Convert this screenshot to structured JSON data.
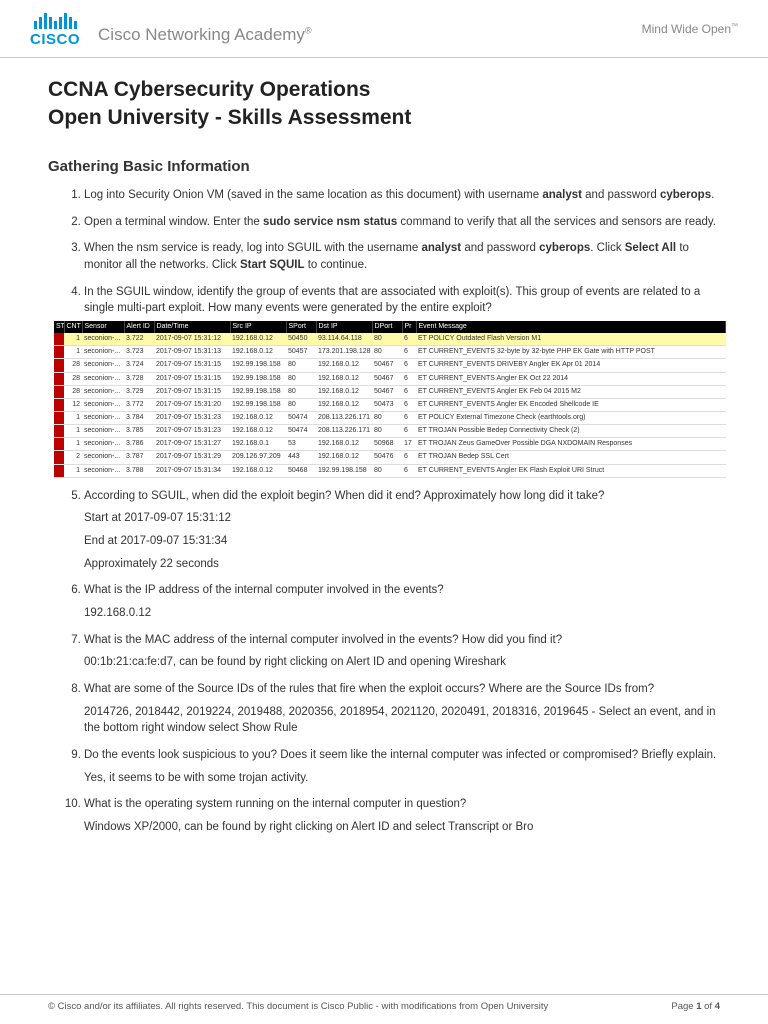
{
  "header": {
    "brand": "CISCO",
    "academy": "Cisco Networking Academy",
    "tagline": "Mind Wide Open",
    "bar_color": "#0096d6",
    "bars": [
      8,
      12,
      16,
      12,
      8,
      12,
      16,
      12,
      8
    ]
  },
  "titles": {
    "line1": "CCNA Cybersecurity Operations",
    "line2": "Open University - Skills Assessment"
  },
  "section_heading": "Gathering Basic Information",
  "items": {
    "1": "Log into Security Onion VM (saved in the same location as this document) with username <b>analyst</b> and password <b>cyberops</b>.",
    "2": "Open a terminal window. Enter the <b>sudo service nsm status</b> command to verify that all the services and sensors are ready.",
    "3": "When the nsm service is ready, log into SGUIL with the username <b>analyst</b> and password <b>cyberops</b>. Click <b>Select All</b> to monitor all the networks. Click <b>Start SQUIL</b> to continue.",
    "4": "In the SGUIL window, identify the group of events that are associated with exploit(s). This group of events are related to a single multi-part exploit. How many events were generated by the entire exploit?",
    "5": "According to SGUIL, when did the exploit begin? When did it end? Approximately how long did it take?",
    "5a": "Start at 2017-09-07 15:31:12",
    "5b": "End at 2017-09-07 15:31:34",
    "5c": "Approximately 22 seconds",
    "6": "What is the IP address of the internal computer involved in the events?",
    "6a": "192.168.0.12",
    "7": "What is the MAC address of the internal computer involved in the events? How did you find it?",
    "7a": "00:1b:21:ca:fe:d7, can be found by right clicking on Alert ID and opening Wireshark",
    "8": "What are some of the Source IDs of the rules that fire when the exploit occurs? Where are the Source IDs from?",
    "8a": "2014726, 2018442, 2019224, 2019488, 2020356, 2018954, 2021120, 2020491, 2018316, 2019645 - Select an event, and in the bottom right window select Show Rule",
    "9": "Do the events look suspicious to you? Does it seem like the internal computer was infected or compromised? Briefly explain.",
    "9a": "Yes, it seems to be with some trojan activity.",
    "10": "What is the operating system running on the internal computer in question?",
    "10a": "Windows XP/2000, can be found by right clicking on Alert ID and select Transcript or Bro"
  },
  "table": {
    "headers": [
      "ST",
      "CNT",
      "Sensor",
      "Alert ID",
      "Date/Time",
      "Src IP",
      "SPort",
      "Dst IP",
      "DPort",
      "Pr",
      "Event Message"
    ],
    "header_bg": "#000000",
    "header_fg": "#ffffff",
    "st_color": "#b00000",
    "highlight_bg": "#fffaaa",
    "rows": [
      {
        "sel": true,
        "cnt": "1",
        "sensor": "seconion-...",
        "aid": "3.722",
        "dt": "2017-09-07 15:31:12",
        "sip": "192.168.0.12",
        "sport": "50450",
        "dip": "93.114.64.118",
        "dport": "80",
        "pr": "6",
        "msg": "ET POLICY Outdated Flash Version M1"
      },
      {
        "sel": false,
        "cnt": "1",
        "sensor": "seconion-...",
        "aid": "3.723",
        "dt": "2017-09-07 15:31:13",
        "sip": "192.168.0.12",
        "sport": "50457",
        "dip": "173.201.198.128",
        "dport": "80",
        "pr": "6",
        "msg": "ET CURRENT_EVENTS 32-byte by 32-byte PHP EK Gate with HTTP POST"
      },
      {
        "sel": false,
        "cnt": "28",
        "sensor": "seconion-...",
        "aid": "3.724",
        "dt": "2017-09-07 15:31:15",
        "sip": "192.99.198.158",
        "sport": "80",
        "dip": "192.168.0.12",
        "dport": "50467",
        "pr": "6",
        "msg": "ET CURRENT_EVENTS DRIVEBY Angler EK Apr 01 2014"
      },
      {
        "sel": false,
        "cnt": "28",
        "sensor": "seconion-...",
        "aid": "3.728",
        "dt": "2017-09-07 15:31:15",
        "sip": "192.99.198.158",
        "sport": "80",
        "dip": "192.168.0.12",
        "dport": "50467",
        "pr": "6",
        "msg": "ET CURRENT_EVENTS Angler EK Oct 22 2014"
      },
      {
        "sel": false,
        "cnt": "28",
        "sensor": "seconion-...",
        "aid": "3.729",
        "dt": "2017-09-07 15:31:15",
        "sip": "192.99.198.158",
        "sport": "80",
        "dip": "192.168.0.12",
        "dport": "50467",
        "pr": "6",
        "msg": "ET CURRENT_EVENTS Angler EK Feb 04 2015 M2"
      },
      {
        "sel": false,
        "cnt": "12",
        "sensor": "seconion-...",
        "aid": "3.772",
        "dt": "2017-09-07 15:31:20",
        "sip": "192.99.198.158",
        "sport": "80",
        "dip": "192.168.0.12",
        "dport": "50473",
        "pr": "6",
        "msg": "ET CURRENT_EVENTS Angler EK Encoded Shellcode IE"
      },
      {
        "sel": false,
        "cnt": "1",
        "sensor": "seconion-...",
        "aid": "3.784",
        "dt": "2017-09-07 15:31:23",
        "sip": "192.168.0.12",
        "sport": "50474",
        "dip": "208.113.226.171",
        "dport": "80",
        "pr": "6",
        "msg": "ET POLICY External Timezone Check (earthtools.org)"
      },
      {
        "sel": false,
        "cnt": "1",
        "sensor": "seconion-...",
        "aid": "3.785",
        "dt": "2017-09-07 15:31:23",
        "sip": "192.168.0.12",
        "sport": "50474",
        "dip": "208.113.226.171",
        "dport": "80",
        "pr": "6",
        "msg": "ET TROJAN Possible Bedep Connectivity Check (2)"
      },
      {
        "sel": false,
        "cnt": "1",
        "sensor": "seconion-...",
        "aid": "3.786",
        "dt": "2017-09-07 15:31:27",
        "sip": "192.168.0.1",
        "sport": "53",
        "dip": "192.168.0.12",
        "dport": "50968",
        "pr": "17",
        "msg": "ET TROJAN Zeus GameOver Possible DGA NXDOMAIN Responses"
      },
      {
        "sel": false,
        "cnt": "2",
        "sensor": "seconion-...",
        "aid": "3.787",
        "dt": "2017-09-07 15:31:29",
        "sip": "209.126.97.209",
        "sport": "443",
        "dip": "192.168.0.12",
        "dport": "50476",
        "pr": "6",
        "msg": "ET TROJAN Bedep SSL Cert"
      },
      {
        "sel": false,
        "cnt": "1",
        "sensor": "seconion-...",
        "aid": "3.788",
        "dt": "2017-09-07 15:31:34",
        "sip": "192.168.0.12",
        "sport": "50468",
        "dip": "192.99.198.158",
        "dport": "80",
        "pr": "6",
        "msg": "ET CURRENT_EVENTS Angler EK Flash Exploit URI Struct"
      }
    ]
  },
  "footer": {
    "left": "© Cisco and/or its affiliates. All rights reserved. This document is Cisco Public - with modifications from Open University",
    "right": "Page 1 of 4"
  }
}
